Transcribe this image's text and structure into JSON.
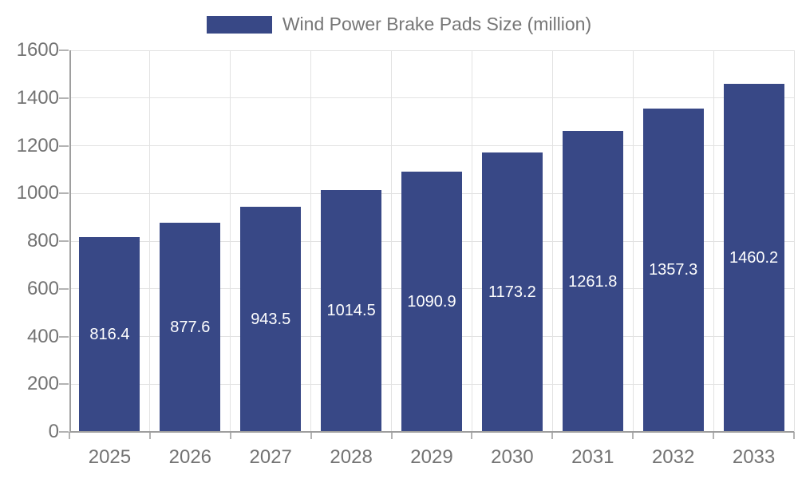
{
  "legend": {
    "series_label": "Wind Power Brake Pads Size (million)"
  },
  "chart_data": {
    "type": "bar",
    "title": "Wind Power Brake Pads Size (million)",
    "categories": [
      "2025",
      "2026",
      "2027",
      "2028",
      "2029",
      "2030",
      "2031",
      "2032",
      "2033"
    ],
    "values": [
      816.4,
      877.6,
      943.5,
      1014.5,
      1090.9,
      1173.2,
      1261.8,
      1357.3,
      1460.2
    ],
    "xlabel": "",
    "ylabel": "",
    "ylim": [
      0,
      1600
    ],
    "yticks": [
      0,
      200,
      400,
      600,
      800,
      1000,
      1200,
      1400,
      1600
    ],
    "grid": true,
    "legend_position": "top-center",
    "value_labels": "inside-center"
  },
  "colors": {
    "bar": "#384886",
    "value_text": "#ffffff",
    "grid": "#e2e2e2",
    "axis": "#9e9e9e",
    "tick": "#b3b3b3",
    "tick_text": "#737373",
    "legend_text": "#767676",
    "background": "#ffffff"
  }
}
